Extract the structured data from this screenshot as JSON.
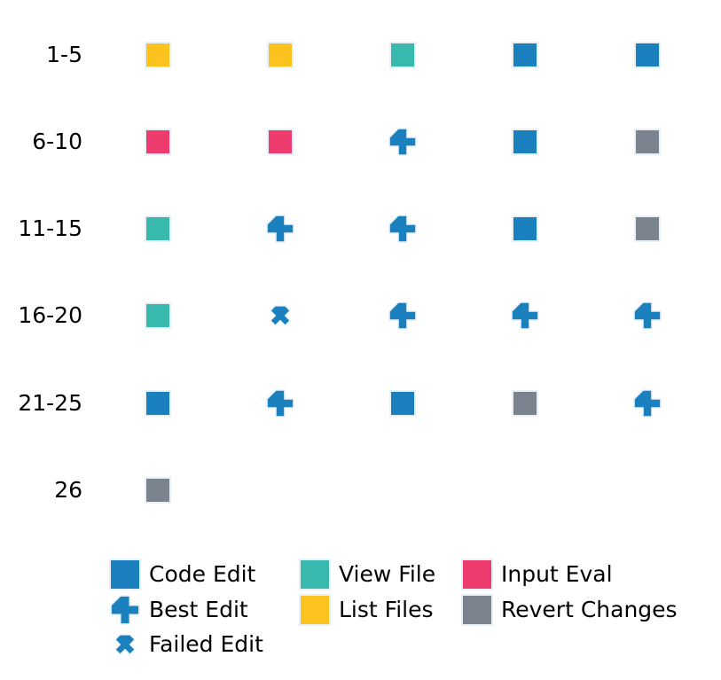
{
  "chart_data": {
    "type": "scatter",
    "title": "",
    "xlabel": "",
    "ylabel": "",
    "grid": false,
    "legend_position": "bottom",
    "rows": [
      "1-5",
      "6-10",
      "11-15",
      "16-20",
      "21-25",
      "26"
    ],
    "n_columns": 5,
    "series_styles": {
      "Code Edit": {
        "marker": "square",
        "color": "#1b81be"
      },
      "Best Edit": {
        "marker": "plus",
        "color": "#1b81be"
      },
      "Failed Edit": {
        "marker": "x",
        "color": "#1b81be"
      },
      "View File": {
        "marker": "square",
        "color": "#39b8ad"
      },
      "List Files": {
        "marker": "square",
        "color": "#fcc21e"
      },
      "Input Eval": {
        "marker": "square",
        "color": "#ee3b6d"
      },
      "Revert Changes": {
        "marker": "square",
        "color": "#7a838e"
      }
    },
    "cells": [
      [
        "List Files",
        "List Files",
        "View File",
        "Code Edit",
        "Code Edit"
      ],
      [
        "Input Eval",
        "Input Eval",
        "Best Edit",
        "Code Edit",
        "Revert Changes"
      ],
      [
        "View File",
        "Best Edit",
        "Best Edit",
        "Code Edit",
        "Revert Changes"
      ],
      [
        "View File",
        "Failed Edit",
        "Best Edit",
        "Best Edit",
        "Best Edit"
      ],
      [
        "Code Edit",
        "Best Edit",
        "Code Edit",
        "Revert Changes",
        "Best Edit"
      ],
      [
        "Revert Changes",
        null,
        null,
        null,
        null
      ]
    ],
    "legend_columns": [
      [
        "Code Edit",
        "Best Edit",
        "Failed Edit"
      ],
      [
        "View File",
        "List Files"
      ],
      [
        "Input Eval",
        "Revert Changes"
      ]
    ],
    "halo_color": "#e9f1f8"
  }
}
